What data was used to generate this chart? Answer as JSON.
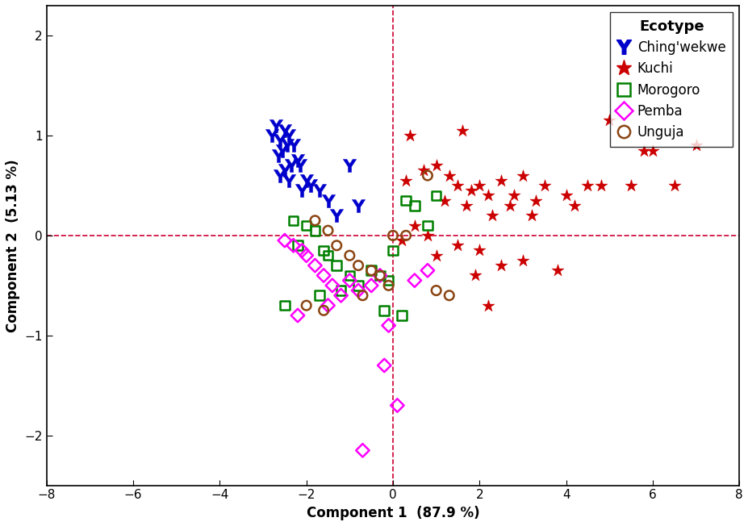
{
  "xlabel": "Component 1  (87.9 %)",
  "ylabel": "Component 2  (5.13 %)",
  "xlim": [
    -8,
    8
  ],
  "ylim": [
    -2.5,
    2.3
  ],
  "xticks": [
    -8,
    -6,
    -4,
    -2,
    0,
    2,
    4,
    6,
    8
  ],
  "yticks": [
    -2,
    -1,
    0,
    1,
    2
  ],
  "ref_color": "#CC0033",
  "background_color": "#ffffff",
  "legend_title": "Ecotype",
  "ching_color": "#0000CC",
  "kuchi_color": "#CC0000",
  "moro_color": "#008000",
  "pemba_color": "#FF00FF",
  "unguja_color": "#8B4513",
  "ching_x": [
    -2.7,
    -2.5,
    -2.6,
    -2.4,
    -2.55,
    -2.45,
    -2.3,
    -2.65,
    -2.2,
    -2.35,
    -2.5,
    -2.15,
    -2.4,
    -2.6,
    -2.0,
    -1.9,
    -2.1,
    -1.7,
    -1.5,
    -1.0,
    -0.8,
    -1.3,
    -2.8
  ],
  "ching_y": [
    1.1,
    1.05,
    0.95,
    1.0,
    0.85,
    0.9,
    0.9,
    0.8,
    0.75,
    0.7,
    0.65,
    0.7,
    0.55,
    0.6,
    0.55,
    0.5,
    0.45,
    0.45,
    0.35,
    0.7,
    0.3,
    0.2,
    1.0
  ],
  "kuchi_x": [
    0.3,
    0.7,
    1.0,
    1.3,
    1.5,
    1.8,
    2.0,
    2.2,
    2.5,
    2.8,
    3.0,
    3.3,
    3.5,
    4.0,
    4.5,
    5.0,
    5.5,
    6.0,
    6.5,
    7.0,
    1.2,
    1.7,
    2.3,
    2.7,
    3.2,
    4.2,
    0.5,
    1.5,
    2.0,
    1.0,
    0.2,
    3.0,
    0.8,
    2.5,
    4.8,
    5.8,
    0.4,
    1.6,
    3.8,
    2.2,
    1.9
  ],
  "kuchi_y": [
    0.55,
    0.65,
    0.7,
    0.6,
    0.5,
    0.45,
    0.5,
    0.4,
    0.55,
    0.4,
    0.6,
    0.35,
    0.5,
    0.4,
    0.5,
    1.15,
    0.5,
    0.85,
    0.5,
    0.9,
    0.35,
    0.3,
    0.2,
    0.3,
    0.2,
    0.3,
    0.1,
    -0.1,
    -0.15,
    -0.2,
    -0.05,
    -0.25,
    0.0,
    -0.3,
    0.5,
    0.85,
    1.0,
    1.05,
    -0.35,
    -0.7,
    -0.4
  ],
  "moro_x": [
    -2.3,
    -2.0,
    -1.8,
    -2.2,
    -1.6,
    -1.5,
    -1.3,
    -1.0,
    -0.8,
    -0.5,
    -0.3,
    -0.1,
    0.0,
    0.3,
    0.5,
    0.8,
    1.0,
    -1.2,
    -1.7,
    -2.5,
    -0.2,
    0.2
  ],
  "moro_y": [
    0.15,
    0.1,
    0.05,
    -0.1,
    -0.15,
    -0.2,
    -0.3,
    -0.4,
    -0.5,
    -0.35,
    -0.4,
    -0.45,
    -0.15,
    0.35,
    0.3,
    0.1,
    0.4,
    -0.55,
    -0.6,
    -0.7,
    -0.75,
    -0.8
  ],
  "pemba_x": [
    -2.5,
    -2.3,
    -2.1,
    -2.0,
    -1.8,
    -1.6,
    -1.4,
    -1.2,
    -1.0,
    -0.8,
    -0.5,
    -0.3,
    -0.2,
    0.5,
    0.8,
    -0.1,
    -1.5,
    -2.2,
    0.1,
    -0.7
  ],
  "pemba_y": [
    -0.05,
    -0.1,
    -0.15,
    -0.2,
    -0.3,
    -0.4,
    -0.5,
    -0.6,
    -0.45,
    -0.55,
    -0.5,
    -0.4,
    -1.3,
    -0.45,
    -0.35,
    -0.9,
    -0.7,
    -0.8,
    -1.7,
    -2.15
  ],
  "unguja_x": [
    -1.8,
    -1.5,
    -1.3,
    -1.0,
    -0.8,
    -0.5,
    -0.3,
    -0.1,
    0.0,
    0.3,
    0.8,
    1.0,
    1.3,
    -2.0,
    -1.6,
    -0.7
  ],
  "unguja_y": [
    0.15,
    0.05,
    -0.1,
    -0.2,
    -0.3,
    -0.35,
    -0.4,
    -0.5,
    -0.0,
    0.0,
    0.6,
    -0.55,
    -0.6,
    -0.7,
    -0.75,
    -0.6
  ]
}
